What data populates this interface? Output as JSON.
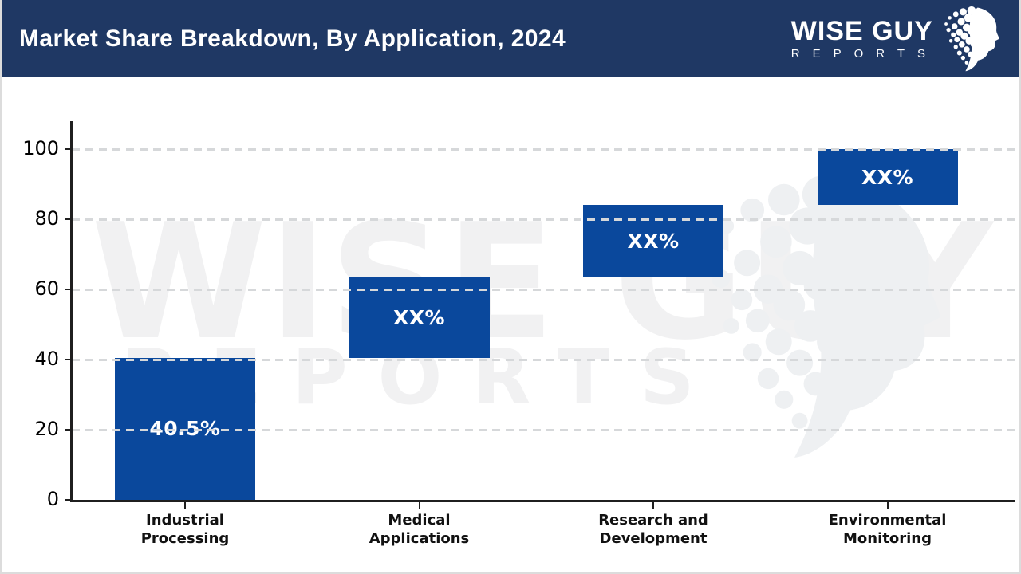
{
  "header": {
    "title": "Market Share Breakdown, By Application, 2024",
    "background_color": "#1f3864",
    "logo": {
      "line1": "WISE GUY",
      "line2": "REPORTS"
    }
  },
  "watermark": {
    "line1": "WISE GUY",
    "line2": "REPORTS"
  },
  "chart_data": {
    "type": "bar",
    "subtype": "waterfall",
    "title": "Market Share Breakdown, By Application, 2024",
    "categories": [
      "Industrial Processing",
      "Medical Applications",
      "Research and Development",
      "Environmental Monitoring"
    ],
    "bars": [
      {
        "category": "Industrial\nProcessing",
        "start": 0,
        "end": 40.5,
        "label": "40.5%"
      },
      {
        "category": "Medical\nApplications",
        "start": 40.5,
        "end": 63.5,
        "label": "XX%"
      },
      {
        "category": "Research and\nDevelopment",
        "start": 63.5,
        "end": 84,
        "label": "XX%"
      },
      {
        "category": "Environmental\nMonitoring",
        "start": 84,
        "end": 100,
        "label": "XX%"
      }
    ],
    "ylim": [
      0,
      100
    ],
    "yticks": [
      0,
      20,
      40,
      60,
      80,
      100
    ],
    "xlabel": "",
    "ylabel": "",
    "grid": true,
    "grid_style": "dashed",
    "legend": "none",
    "bar_color": "#0a489c",
    "bar_label_color": "#ffffff",
    "grid_color": "#d6d8da",
    "axis_color": "#1f1f1f"
  }
}
